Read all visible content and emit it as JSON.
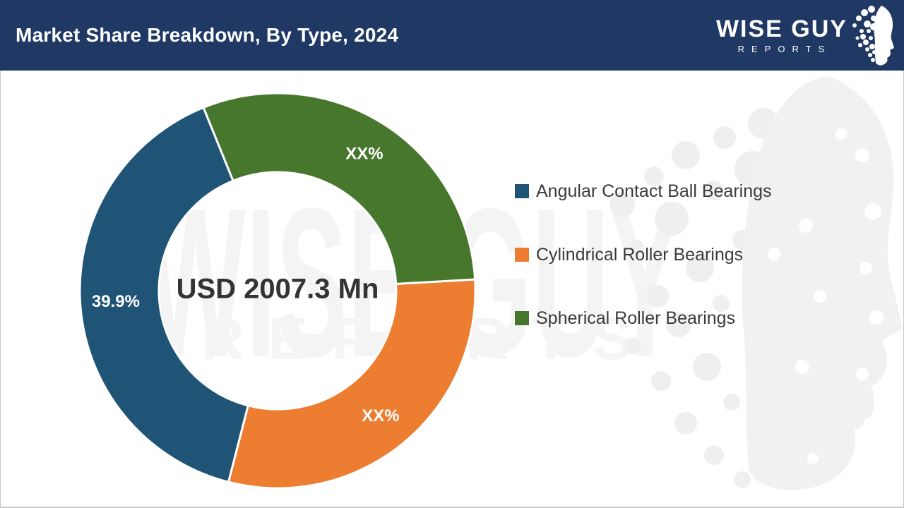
{
  "header": {
    "title": "Market Share Breakdown, By Type, 2024",
    "logo": {
      "line1": "WISE GUY",
      "line2": "REPORTS"
    }
  },
  "watermark": {
    "line1": "WISE GUY",
    "line2": "REPORTS"
  },
  "chart_data": {
    "type": "pie",
    "subtype": "donut",
    "title": "Market Share Breakdown, By Type, 2024",
    "center_label": "USD 2007.3 Mn",
    "start_angle_deg": 112,
    "direction": "counterclockwise",
    "inner_radius_ratio": 0.6,
    "legend_position": "right",
    "segments": [
      {
        "name": "Angular Contact Ball Bearings",
        "value": 39.9,
        "label": "39.9%",
        "color": "#205476"
      },
      {
        "name": "Cylindrical Roller Bearings",
        "value": 29.9,
        "label": "XX%",
        "color": "#ed7d31"
      },
      {
        "name": "Spherical Roller Bearings",
        "value": 30.2,
        "label": "XX%",
        "color": "#47762d"
      }
    ]
  },
  "colors": {
    "header_bg": "#1f3864",
    "center_text": "#333333",
    "legend_text": "#3b3b3b",
    "card_border": "#c9c9c9",
    "watermark": "#f4f4f4"
  }
}
